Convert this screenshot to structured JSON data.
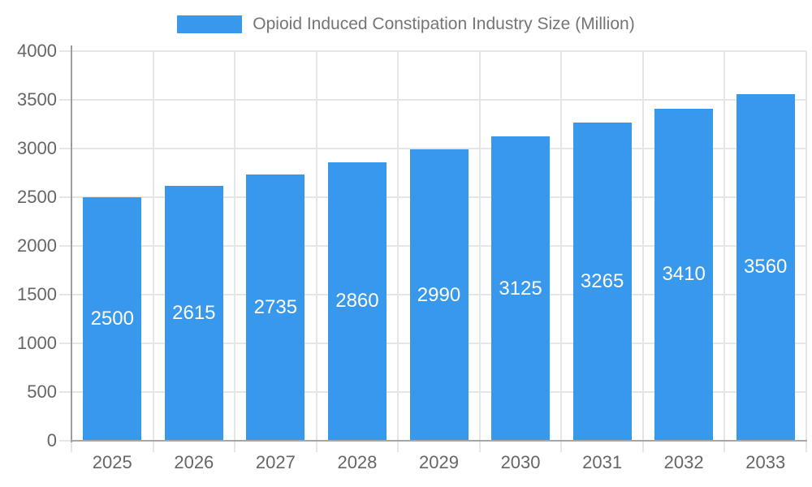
{
  "legend": {
    "label": "Opioid Induced Constipation Industry Size (Million)"
  },
  "chart_data": {
    "type": "bar",
    "title": "Opioid Induced Constipation Industry Size (Million)",
    "series_name": "Opioid Induced Constipation Industry Size (Million)",
    "categories": [
      "2025",
      "2026",
      "2027",
      "2028",
      "2029",
      "2030",
      "2031",
      "2032",
      "2033"
    ],
    "values": [
      2500,
      2615,
      2735,
      2860,
      2990,
      3125,
      3265,
      3410,
      3560
    ],
    "xlabel": "",
    "ylabel": "",
    "ylim": [
      0,
      4000
    ],
    "y_ticks": [
      0,
      500,
      1000,
      1500,
      2000,
      2500,
      3000,
      3500,
      4000
    ],
    "grid": true,
    "legend_position": "top-center",
    "bar_color": "#3899EC",
    "value_label_color": "#FFFFFF",
    "grid_color": "#E6E6E6",
    "axis_line_color": "#9E9E9E",
    "tick_label_color": "#666666",
    "legend_text_color": "#757575",
    "background_color": "#FFFFFF"
  }
}
